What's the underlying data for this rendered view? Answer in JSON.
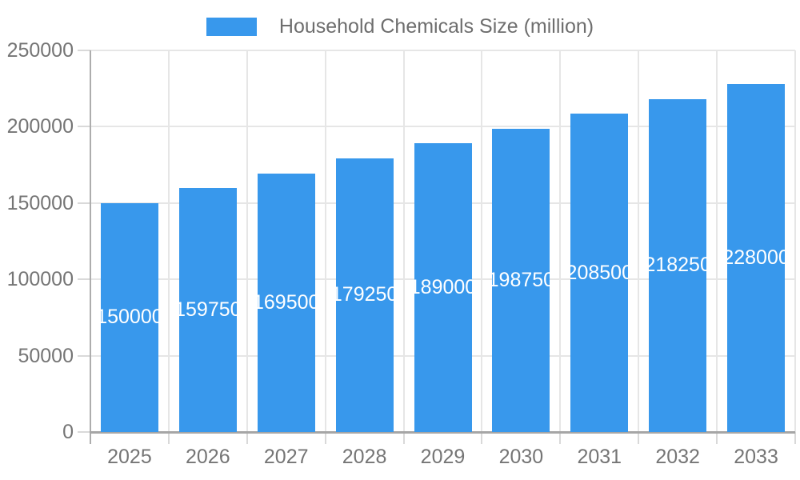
{
  "chart_data": {
    "type": "bar",
    "legend": "Household Chemicals Size (million)",
    "legend_position": "top-center",
    "categories": [
      "2025",
      "2026",
      "2027",
      "2028",
      "2029",
      "2030",
      "2031",
      "2032",
      "2033"
    ],
    "series": [
      {
        "name": "Household Chemicals Size (million)",
        "values": [
          150000,
          159750,
          169500,
          179250,
          189000,
          198750,
          208500,
          218250,
          228000
        ]
      }
    ],
    "bar_value_labels": [
      "150000",
      "159750",
      "169500",
      "179250",
      "189000",
      "198750",
      "208500",
      "218250",
      "228000"
    ],
    "ylim": [
      0,
      250000
    ],
    "yticks": [
      0,
      50000,
      100000,
      150000,
      200000,
      250000
    ],
    "ytick_labels": [
      "0",
      "50000",
      "100000",
      "150000",
      "200000",
      "250000"
    ],
    "grid": "on",
    "colors": {
      "bar": "#3898EC",
      "bar_label": "#FFFFFF",
      "axis_label": "#757575",
      "legend_text": "#6E6E6E",
      "gridline": "#E6E6E6",
      "tick": "#D9D9D9",
      "y_axis_line": "#ADADAD",
      "x_axis_line": "#A6A6A6",
      "background": "#FFFFFF"
    }
  }
}
